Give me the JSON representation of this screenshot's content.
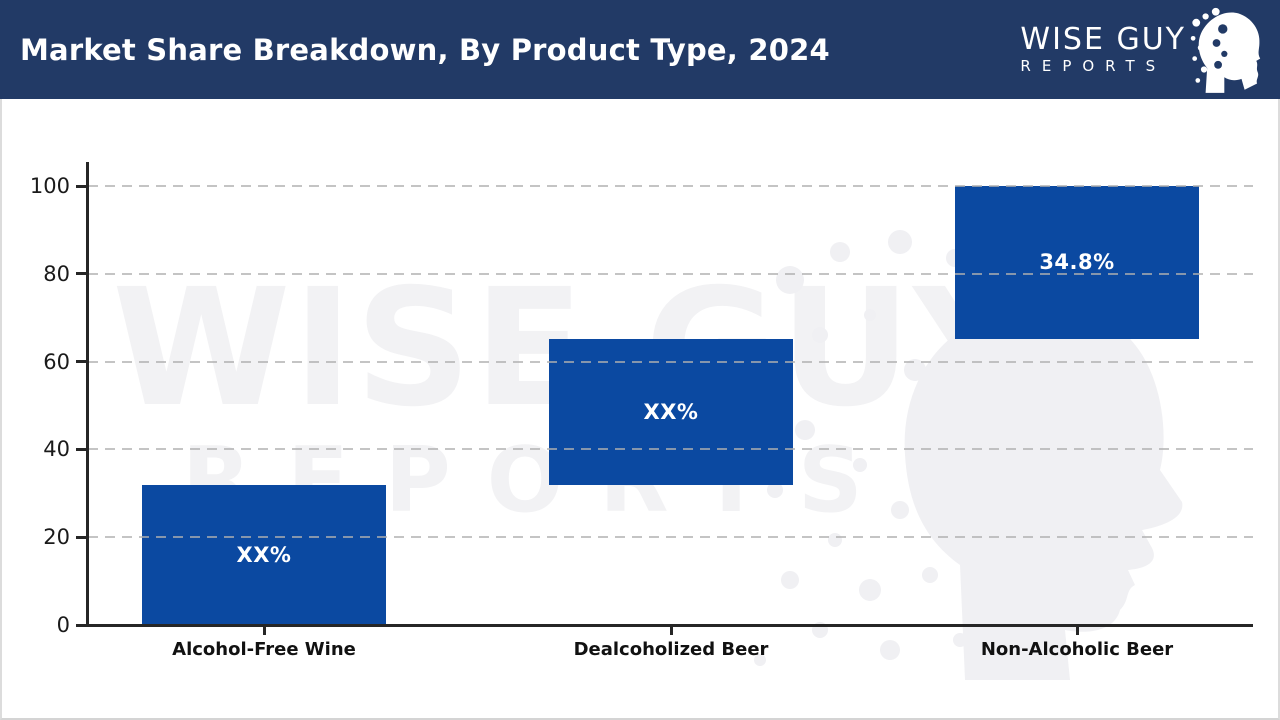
{
  "header": {
    "title": "Market Share Breakdown, By Product Type, 2024",
    "logo": {
      "line1": "WISE GUY",
      "line2": "REPORTS",
      "icon": "dotted-face-profile"
    }
  },
  "watermark": {
    "line1": "WISE GUY",
    "line2": "REPORTS",
    "icon": "dotted-face-profile"
  },
  "colors": {
    "header_bg": "#223A66",
    "bar": "#0B49A1",
    "gridline": "#d1d1d1",
    "axis": "#262626",
    "watermark": "#f2f2f4"
  },
  "chart_data": {
    "type": "bar",
    "subtype": "waterfall-floating-segments",
    "title": "Market Share Breakdown, By Product Type, 2024",
    "categories": [
      "Alcohol-Free Wine",
      "Dealcoholized Beer",
      "Non-Alcoholic Beer"
    ],
    "segments": [
      {
        "category": "Alcohol-Free Wine",
        "start": 0,
        "end": 31.8,
        "value": 31.8,
        "label": "XX%"
      },
      {
        "category": "Dealcoholized Beer",
        "start": 31.8,
        "end": 65.2,
        "value": 33.4,
        "label": "XX%"
      },
      {
        "category": "Non-Alcoholic Beer",
        "start": 65.2,
        "end": 100,
        "value": 34.8,
        "label": "34.8%"
      }
    ],
    "xlabel": "",
    "ylabel": "",
    "ylim": [
      0,
      100
    ],
    "yticks": [
      0,
      20,
      40,
      60,
      80,
      100
    ],
    "grid": "horizontal-dashed",
    "legend": "none",
    "bar_color": "#0B49A1"
  }
}
